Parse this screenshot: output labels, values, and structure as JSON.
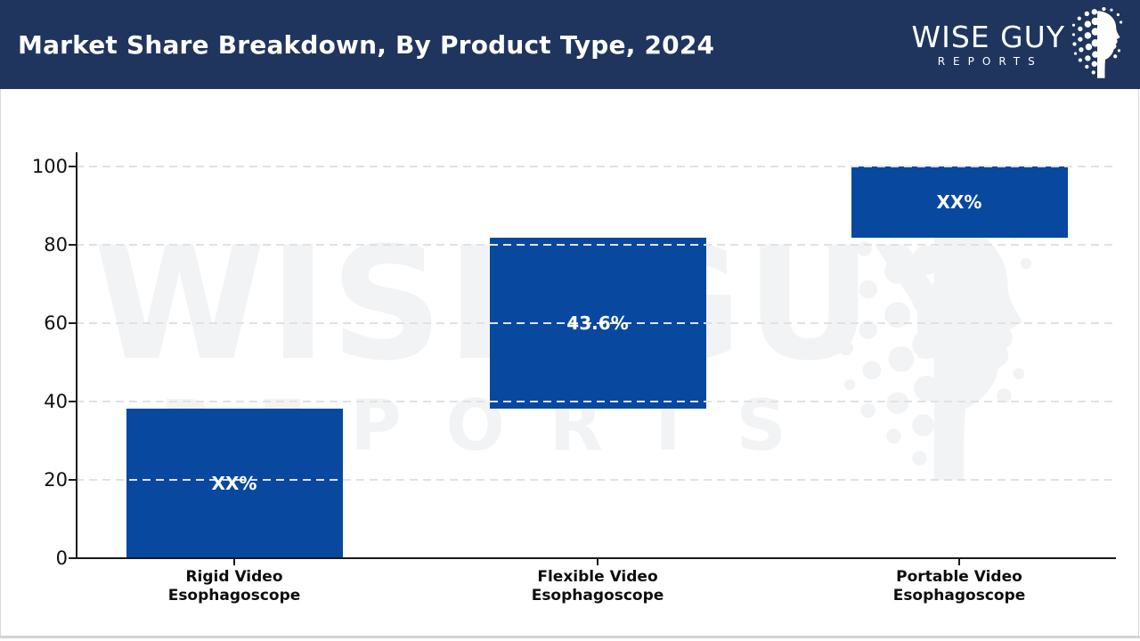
{
  "header": {
    "title": "Market Share Breakdown, By Product Type, 2024",
    "logo": {
      "wordmark": "WISE GUY",
      "subtext": "REPORTS"
    }
  },
  "watermark": {
    "wordmark": "WISE GUY",
    "subtext": "REPORTS"
  },
  "chart_data": {
    "type": "bar",
    "variant": "stacked-waterfall market share (each bar starts where the previous ends)",
    "title": "Market Share Breakdown, By Product Type, 2024",
    "categories": [
      "Rigid Video Esophagoscope",
      "Flexible Video Esophagoscope",
      "Portable Video Esophagoscope"
    ],
    "categories_lines": [
      [
        "Rigid Video",
        "Esophagoscope"
      ],
      [
        "Flexible Video",
        "Esophagoscope"
      ],
      [
        "Portable Video",
        "Esophagoscope"
      ]
    ],
    "values": [
      38.2,
      43.6,
      18.2
    ],
    "bar_ranges": [
      [
        0,
        38.2
      ],
      [
        38.2,
        81.8
      ],
      [
        81.8,
        100
      ]
    ],
    "bar_labels": [
      "XX%",
      "43.6%",
      "XX%"
    ],
    "y_ticks": [
      0,
      20,
      40,
      60,
      80,
      100
    ],
    "ylim": [
      0,
      100
    ],
    "xlabel": "",
    "ylabel": "",
    "grid": "horizontal dashed gridlines, drawn above bars",
    "legend": "none",
    "colors": {
      "bar": "#09489f",
      "header_bg": "#1f355e",
      "grid": "#e2e2e2",
      "axis": "#1a1a1a",
      "watermark": "#f2f3f5",
      "title_text": "#ffffff",
      "bar_label_text": "#ffffff"
    }
  }
}
